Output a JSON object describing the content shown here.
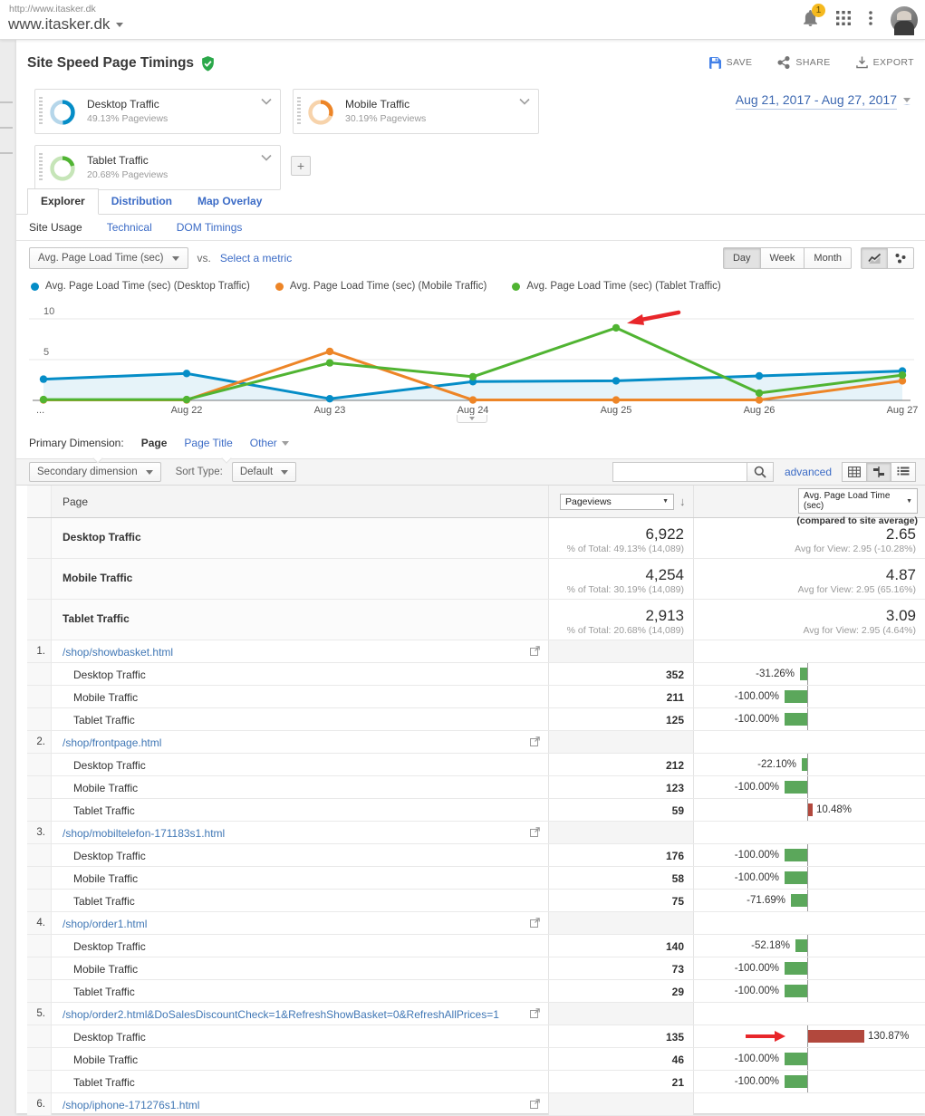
{
  "topbar": {
    "url_small": "http://www.itasker.dk",
    "property": "www.itasker.dk",
    "notification_count": "1"
  },
  "header": {
    "title": "Site Speed Page Timings",
    "save": "SAVE",
    "share": "SHARE",
    "export": "EXPORT"
  },
  "date_range": "Aug 21, 2017 - Aug 27, 2017",
  "segments": [
    {
      "name": "Desktop Traffic",
      "detail": "49.13% Pageviews",
      "pct": 49.13,
      "color": "#058dc7",
      "track": "#b5d6ea"
    },
    {
      "name": "Mobile Traffic",
      "detail": "30.19% Pageviews",
      "pct": 30.19,
      "color": "#ed8527",
      "track": "#f7d3ab"
    },
    {
      "name": "Tablet Traffic",
      "detail": "20.68% Pageviews",
      "pct": 20.68,
      "color": "#50b432",
      "track": "#c6e5b8"
    }
  ],
  "segments_add_label": "+",
  "tabs": [
    "Explorer",
    "Distribution",
    "Map Overlay"
  ],
  "subtabs": [
    "Site Usage",
    "Technical",
    "DOM Timings"
  ],
  "metric_bar": {
    "metric": "Avg. Page Load Time (sec)",
    "vs": "vs.",
    "select_metric": "Select a metric"
  },
  "granularity": [
    "Day",
    "Week",
    "Month"
  ],
  "chart_data": {
    "type": "line",
    "x": [
      "...",
      "Aug 22",
      "Aug 23",
      "Aug 24",
      "Aug 25",
      "Aug 26",
      "Aug 27"
    ],
    "ylim": [
      0,
      10
    ],
    "yticks": [
      5,
      10
    ],
    "grid": true,
    "legend_position": "top",
    "series": [
      {
        "name": "Avg. Page Load Time (sec) (Desktop Traffic)",
        "color": "#058dc7",
        "area": true,
        "values": [
          2.6,
          3.3,
          0.2,
          2.3,
          2.4,
          3.0,
          3.6
        ]
      },
      {
        "name": "Avg. Page Load Time (sec) (Mobile Traffic)",
        "color": "#ed8527",
        "area": false,
        "values": [
          0.05,
          0.05,
          6.0,
          0.05,
          0.05,
          0.05,
          2.4
        ]
      },
      {
        "name": "Avg. Page Load Time (sec) (Tablet Traffic)",
        "color": "#50b432",
        "area": false,
        "values": [
          0.1,
          0.1,
          4.6,
          2.9,
          8.9,
          0.9,
          3.1
        ]
      }
    ],
    "annotation": {
      "type": "arrow",
      "color": "#e8262a",
      "points_to": "Tablet Traffic peak on Aug 25"
    }
  },
  "primary_dimension": {
    "label": "Primary Dimension:",
    "options": [
      "Page",
      "Page Title",
      "Other"
    ]
  },
  "table_toolbar": {
    "secondary": "Secondary dimension",
    "sort_label": "Sort Type:",
    "sort_value": "Default",
    "search_placeholder": "",
    "advanced": "advanced"
  },
  "table": {
    "columns": {
      "page": "Page",
      "pageviews": "Pageviews",
      "metric": "Avg. Page Load Time (sec)",
      "metric_sub": "(compared to site average)"
    },
    "summary_rows": [
      {
        "name": "Desktop Traffic",
        "pageviews": "6,922",
        "pageviews_sub": "% of Total: 49.13% (14,089)",
        "metric": "2.65",
        "metric_sub": "Avg for View: 2.95 (-10.28%)"
      },
      {
        "name": "Mobile Traffic",
        "pageviews": "4,254",
        "pageviews_sub": "% of Total: 30.19% (14,089)",
        "metric": "4.87",
        "metric_sub": "Avg for View: 2.95 (65.16%)"
      },
      {
        "name": "Tablet Traffic",
        "pageviews": "2,913",
        "pageviews_sub": "% of Total: 20.68% (14,089)",
        "metric": "3.09",
        "metric_sub": "Avg for View: 2.95 (4.64%)"
      }
    ],
    "groups": [
      {
        "index": "1.",
        "url": "/shop/showbasket.html",
        "rows": [
          {
            "name": "Desktop Traffic",
            "pageviews": "352",
            "pct": -31.26,
            "pct_label": "-31.26%"
          },
          {
            "name": "Mobile Traffic",
            "pageviews": "211",
            "pct": -100,
            "pct_label": "-100.00%"
          },
          {
            "name": "Tablet Traffic",
            "pageviews": "125",
            "pct": -100,
            "pct_label": "-100.00%"
          }
        ]
      },
      {
        "index": "2.",
        "url": "/shop/frontpage.html",
        "rows": [
          {
            "name": "Desktop Traffic",
            "pageviews": "212",
            "pct": -22.1,
            "pct_label": "-22.10%"
          },
          {
            "name": "Mobile Traffic",
            "pageviews": "123",
            "pct": -100,
            "pct_label": "-100.00%"
          },
          {
            "name": "Tablet Traffic",
            "pageviews": "59",
            "pct": 10.48,
            "pct_label": "10.48%"
          }
        ]
      },
      {
        "index": "3.",
        "url": "/shop/mobiltelefon-171183s1.html",
        "rows": [
          {
            "name": "Desktop Traffic",
            "pageviews": "176",
            "pct": -100,
            "pct_label": "-100.00%"
          },
          {
            "name": "Mobile Traffic",
            "pageviews": "58",
            "pct": -100,
            "pct_label": "-100.00%"
          },
          {
            "name": "Tablet Traffic",
            "pageviews": "75",
            "pct": -71.69,
            "pct_label": "-71.69%"
          }
        ]
      },
      {
        "index": "4.",
        "url": "/shop/order1.html",
        "rows": [
          {
            "name": "Desktop Traffic",
            "pageviews": "140",
            "pct": -52.18,
            "pct_label": "-52.18%"
          },
          {
            "name": "Mobile Traffic",
            "pageviews": "73",
            "pct": -100,
            "pct_label": "-100.00%"
          },
          {
            "name": "Tablet Traffic",
            "pageviews": "29",
            "pct": -100,
            "pct_label": "-100.00%"
          }
        ]
      },
      {
        "index": "5.",
        "url": "/shop/order2.html&DoSalesDiscountCheck=1&RefreshShowBasket=0&RefreshAllPrices=1",
        "rows": [
          {
            "name": "Desktop Traffic",
            "pageviews": "135",
            "pct": 130.87,
            "pct_label": "130.87%",
            "arrow": true
          },
          {
            "name": "Mobile Traffic",
            "pageviews": "46",
            "pct": -100,
            "pct_label": "-100.00%"
          },
          {
            "name": "Tablet Traffic",
            "pageviews": "21",
            "pct": -100,
            "pct_label": "-100.00%"
          }
        ]
      },
      {
        "index": "6.",
        "url": "/shop/iphone-171276s1.html",
        "rows": []
      }
    ],
    "bar_colors": {
      "negative": "#5ba75b",
      "positive": "#b2483d"
    }
  }
}
